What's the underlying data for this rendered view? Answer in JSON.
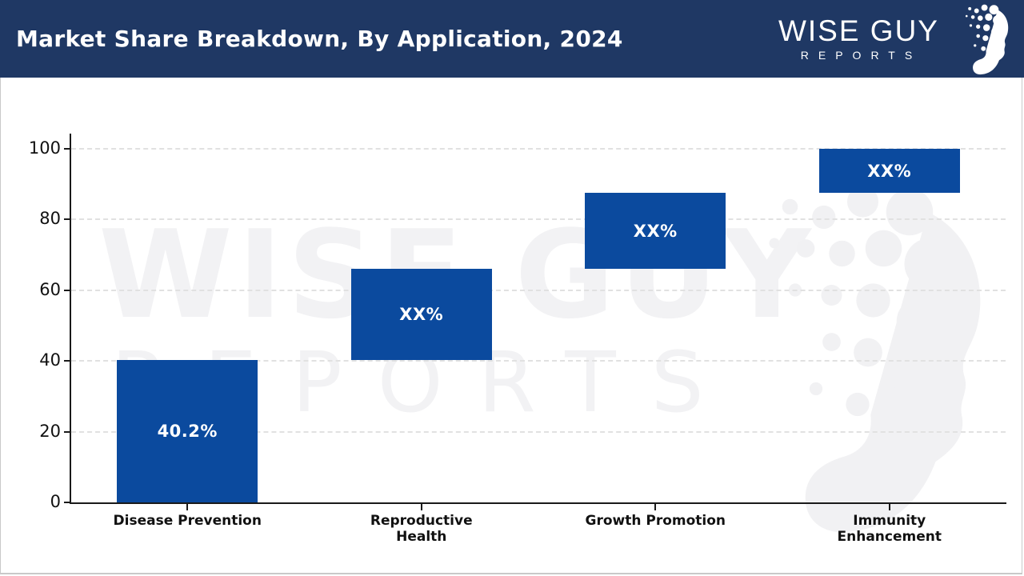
{
  "header": {
    "title": "Market Share Breakdown, By Application, 2024",
    "logo": {
      "line1": "WISE GUY",
      "line2": "REPORTS"
    }
  },
  "watermark": {
    "line1": "WISE GUY",
    "line2": "REPORTS"
  },
  "chart_data": {
    "type": "bar",
    "subtype": "waterfall",
    "title": "Market Share Breakdown, By Application, 2024",
    "categories": [
      {
        "lines": [
          "Disease Prevention"
        ]
      },
      {
        "lines": [
          "Reproductive",
          "Health"
        ]
      },
      {
        "lines": [
          "Growth Promotion"
        ]
      },
      {
        "lines": [
          "Immunity",
          "Enhancement"
        ]
      }
    ],
    "segments": [
      {
        "category": "Disease Prevention",
        "start": 0,
        "end": 40.2,
        "label": "40.2%"
      },
      {
        "category": "Reproductive Health",
        "start": 40.2,
        "end": 66,
        "label": "XX%"
      },
      {
        "category": "Growth Promotion",
        "start": 66,
        "end": 87.5,
        "label": "XX%"
      },
      {
        "category": "Immunity Enhancement",
        "start": 87.5,
        "end": 100,
        "label": "XX%"
      }
    ],
    "ylim": [
      0,
      100
    ],
    "yticks": [
      0,
      20,
      40,
      60,
      80,
      100
    ],
    "xlabel": "",
    "ylabel": "",
    "grid": "horizontal-dashed",
    "legend": "none",
    "bar_color": "#0b4a9e",
    "bar_label_color": "#ffffff"
  },
  "colors": {
    "header_bg": "#1f3864",
    "bar": "#0b4a9e",
    "axis": "#1a1a1a",
    "grid": "#e1e1e1",
    "watermark": "#f2f2f4",
    "card_border": "#c9c9c9"
  }
}
